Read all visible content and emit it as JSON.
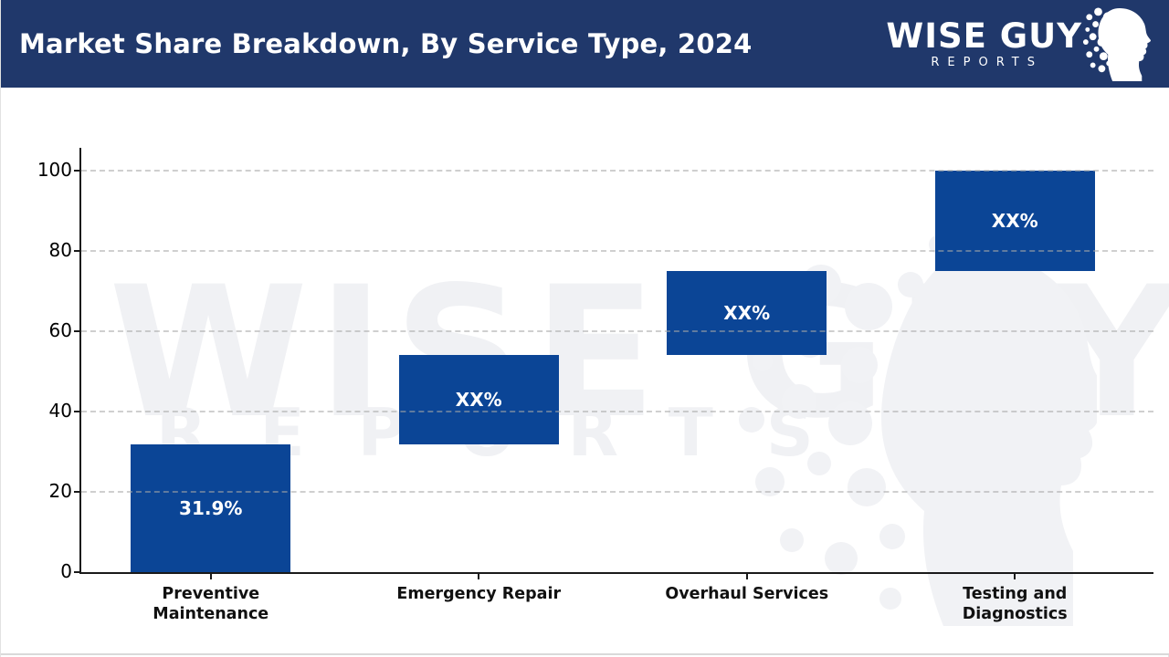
{
  "header": {
    "title": "Market Share Breakdown, By Service Type, 2024",
    "bg_color": "#20386b",
    "logo_line1": "WISE GUY",
    "logo_line2": "REPORTS"
  },
  "watermark": {
    "line1": "WISE GUY",
    "line2": "REPORTS"
  },
  "chart_data": {
    "type": "bar",
    "subtype": "waterfall",
    "title": "Market Share Breakdown, By Service Type, 2024",
    "categories": [
      "Preventive Maintenance",
      "Emergency Repair",
      "Overhaul Services",
      "Testing and Diagnostics"
    ],
    "category_lines": [
      [
        "Preventive",
        "Maintenance"
      ],
      [
        "Emergency Repair"
      ],
      [
        "Overhaul Services"
      ],
      [
        "Testing and",
        "Diagnostics"
      ]
    ],
    "segments": [
      {
        "category": "Preventive Maintenance",
        "start": 0,
        "end": 31.9,
        "label": "31.9%"
      },
      {
        "category": "Emergency Repair",
        "start": 31.9,
        "end": 54,
        "label": "XX%"
      },
      {
        "category": "Overhaul Services",
        "start": 54,
        "end": 75,
        "label": "XX%"
      },
      {
        "category": "Testing and Diagnostics",
        "start": 75,
        "end": 100,
        "label": "XX%"
      }
    ],
    "yticks": [
      0,
      20,
      40,
      60,
      80,
      100
    ],
    "ylim": [
      0,
      105
    ],
    "xlabel": "",
    "ylabel": "",
    "bar_color": "#0b4596",
    "grid": "horizontal-dashed",
    "gridline_color": "#d9d9d9",
    "axis_color": "#1a1a1a",
    "value_label_color": "#ffffff",
    "legend": null
  }
}
